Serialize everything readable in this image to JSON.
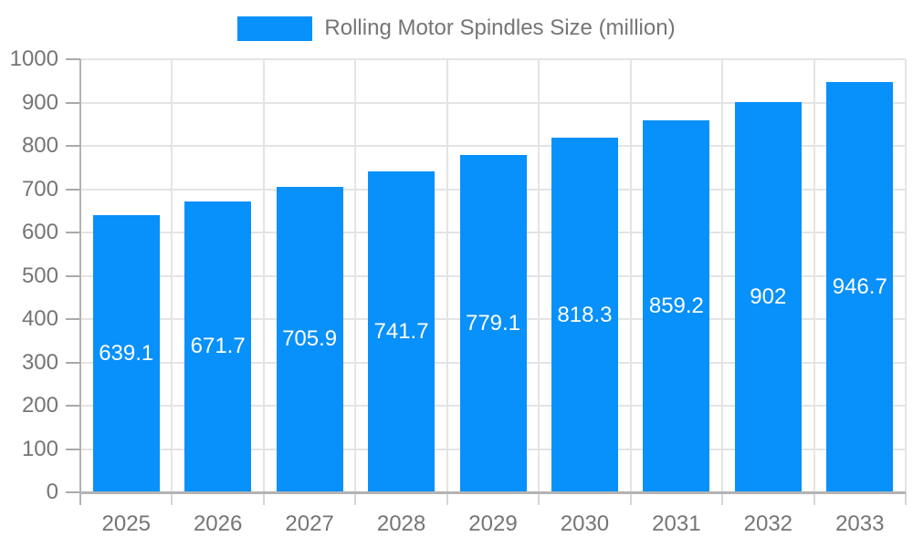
{
  "chart_data": {
    "type": "bar",
    "title": "",
    "legend": "Rolling Motor Spindles Size (million)",
    "legend_position": "top",
    "categories": [
      "2025",
      "2026",
      "2027",
      "2028",
      "2029",
      "2030",
      "2031",
      "2032",
      "2033"
    ],
    "series": [
      {
        "name": "Rolling Motor Spindles Size (million)",
        "values": [
          639.1,
          671.7,
          705.9,
          741.7,
          779.1,
          818.3,
          859.2,
          902,
          946.7
        ]
      }
    ],
    "value_labels": [
      "639.1",
      "671.7",
      "705.9",
      "741.7",
      "779.1",
      "818.3",
      "859.2",
      "902",
      "946.7"
    ],
    "xlabel": "",
    "ylabel": "",
    "ylim": [
      0,
      1000
    ],
    "y_tick_step": 100,
    "y_ticks": [
      "0",
      "100",
      "200",
      "300",
      "400",
      "500",
      "600",
      "700",
      "800",
      "900",
      "1000"
    ],
    "grid": true,
    "colors": {
      "bar": "#0890FB",
      "grid": "#e4e4e4",
      "axis": "#b3b3b3",
      "tick": "#a9a9a9",
      "minor_tick": "#d6d6d6",
      "label": "#757575",
      "value_label": "#ffffff",
      "background": "#ffffff"
    }
  }
}
